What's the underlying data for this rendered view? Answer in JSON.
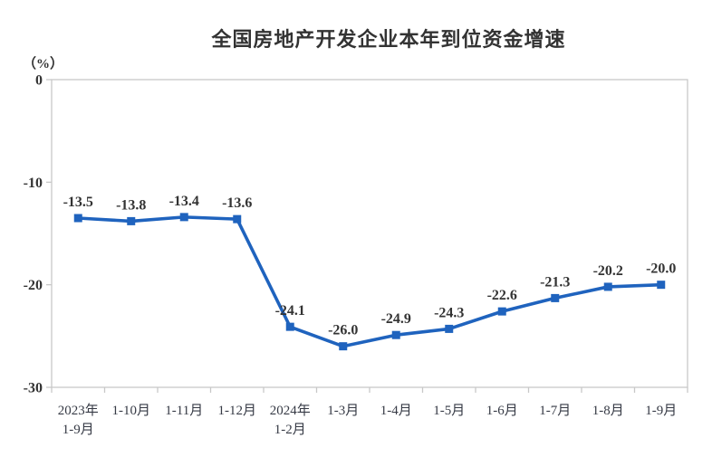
{
  "page": {
    "background": "#ffffff"
  },
  "chart_data": {
    "type": "line",
    "title": "全国房地产开发企业本年到位资金增速",
    "unit_label": "（%）",
    "categories": [
      "2023年\n1-9月",
      "1-10月",
      "1-11月",
      "1-12月",
      "2024年\n1-2月",
      "1-3月",
      "1-4月",
      "1-5月",
      "1-6月",
      "1-7月",
      "1-8月",
      "1-9月"
    ],
    "series": [
      {
        "name": "全国房地产开发企业本年到位资金增速",
        "values": [
          -13.5,
          -13.8,
          -13.4,
          -13.6,
          -24.1,
          -26.0,
          -24.9,
          -24.3,
          -22.6,
          -21.3,
          -20.2,
          -20.0
        ],
        "data_labels": [
          "-13.5",
          "-13.8",
          "-13.4",
          "-13.6",
          "-24.1",
          "-26.0",
          "-24.9",
          "-24.3",
          "-22.6",
          "-21.3",
          "-20.2",
          "-20.0"
        ]
      }
    ],
    "xlabel": "",
    "ylabel": "（%）",
    "ylim": [
      -30,
      0
    ],
    "y_ticks": [
      0,
      -10,
      -20,
      -30
    ],
    "y_tick_labels": [
      "0",
      "-10",
      "-20",
      "-30"
    ],
    "grid": false,
    "legend_position": "none",
    "marker": "square",
    "colors": {
      "line": "#1F63BE",
      "marker": "#1F63BE",
      "axis": "#c8c8c8",
      "tick_text": "#333333",
      "data_label_text": "#333333",
      "title_text": "#333333"
    }
  }
}
